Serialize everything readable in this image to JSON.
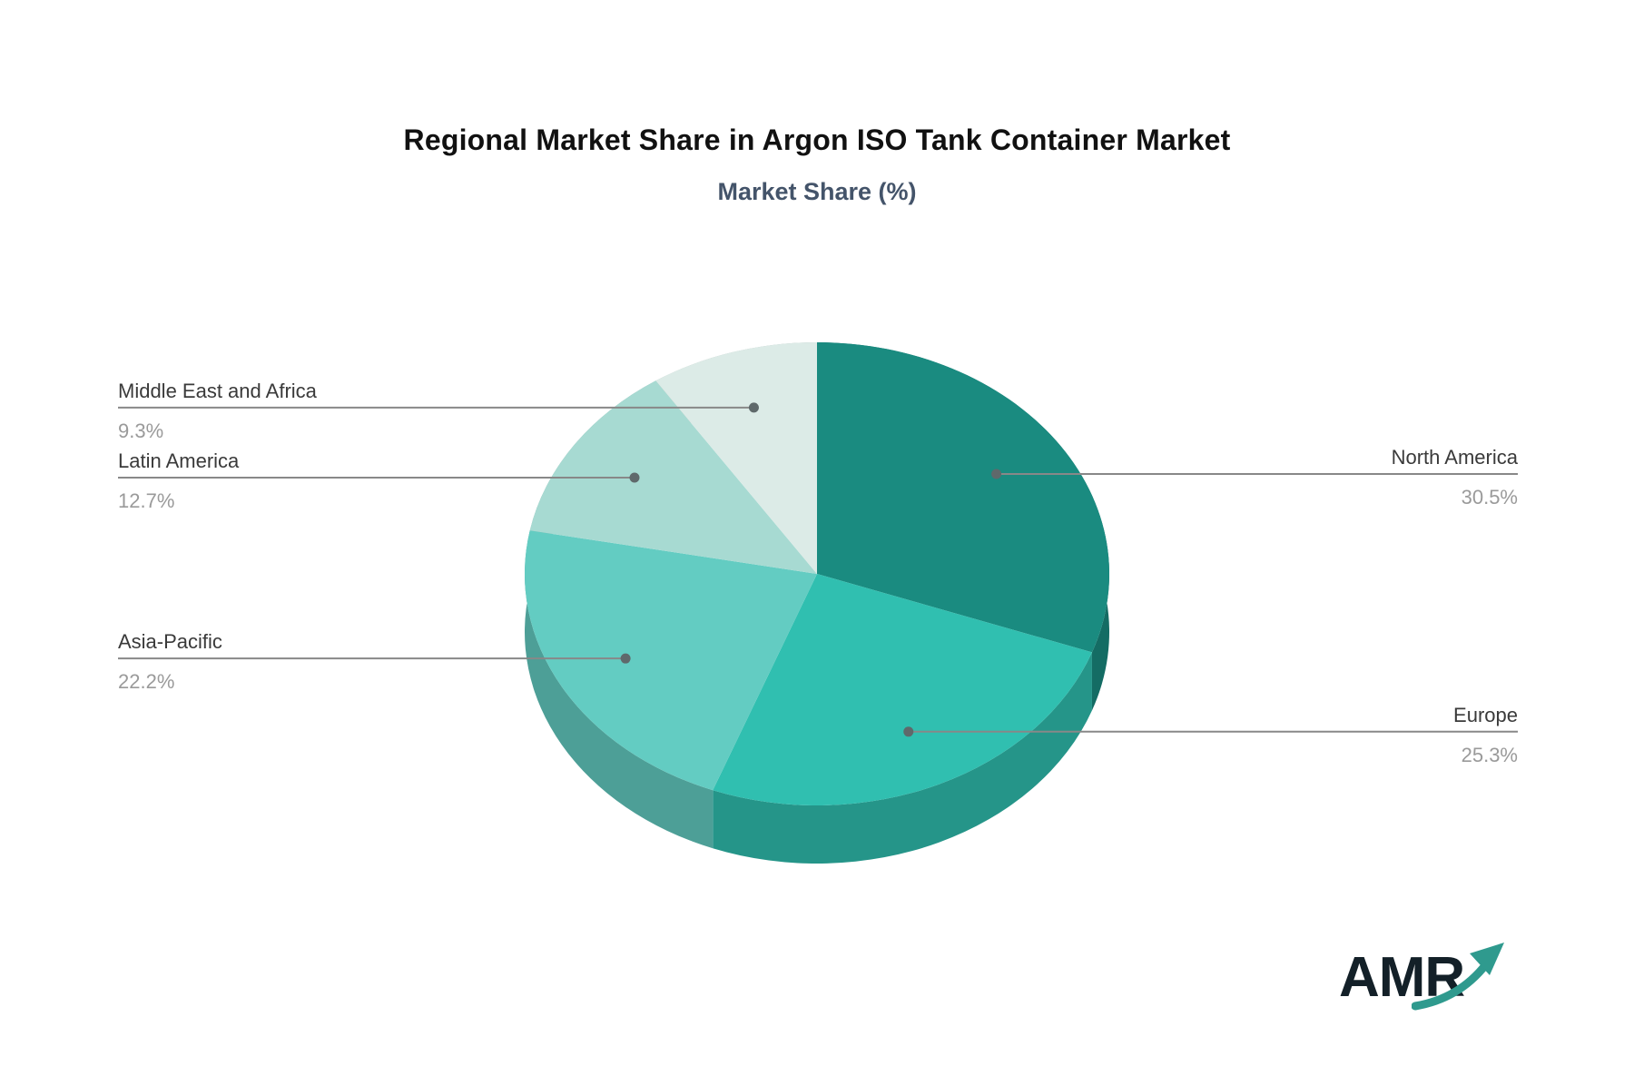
{
  "chart_data": {
    "type": "pie",
    "title": "Regional Market Share in Argon ISO Tank Container Market",
    "subtitle": "Market Share (%)",
    "unit": "%",
    "effect": "3d-extruded pie, slices start at 12 o'clock and run clockwise",
    "legend_position": "none; leader-line labels on left and right sides",
    "segments": [
      {
        "label": "North America",
        "value": 30.5,
        "display": "30.5%",
        "color": "#1a8b80",
        "label_side": "right"
      },
      {
        "label": "Europe",
        "value": 25.3,
        "display": "25.3%",
        "color": "#30bfb0",
        "label_side": "right"
      },
      {
        "label": "Asia-Pacific",
        "value": 22.2,
        "display": "22.2%",
        "color": "#63ccc2",
        "label_side": "left"
      },
      {
        "label": "Latin America",
        "value": 12.7,
        "display": "12.7%",
        "color": "#a7dad2",
        "label_side": "left"
      },
      {
        "label": "Middle East and Africa",
        "value": 9.3,
        "display": "9.3%",
        "color": "#dcebe7",
        "label_side": "left"
      }
    ]
  },
  "style": {
    "background": "#ffffff",
    "leader_line_color": "#888888",
    "leader_dot_color": "#5f696b",
    "label_text_color": "#3a3a3a",
    "value_text_color": "#9a9a9a",
    "title_color": "#111111",
    "subtitle_color": "#44546a"
  },
  "branding": {
    "logo_text": "AMR",
    "logo_text_color": "#132028",
    "logo_arrow_color": "#2f9a8e"
  }
}
